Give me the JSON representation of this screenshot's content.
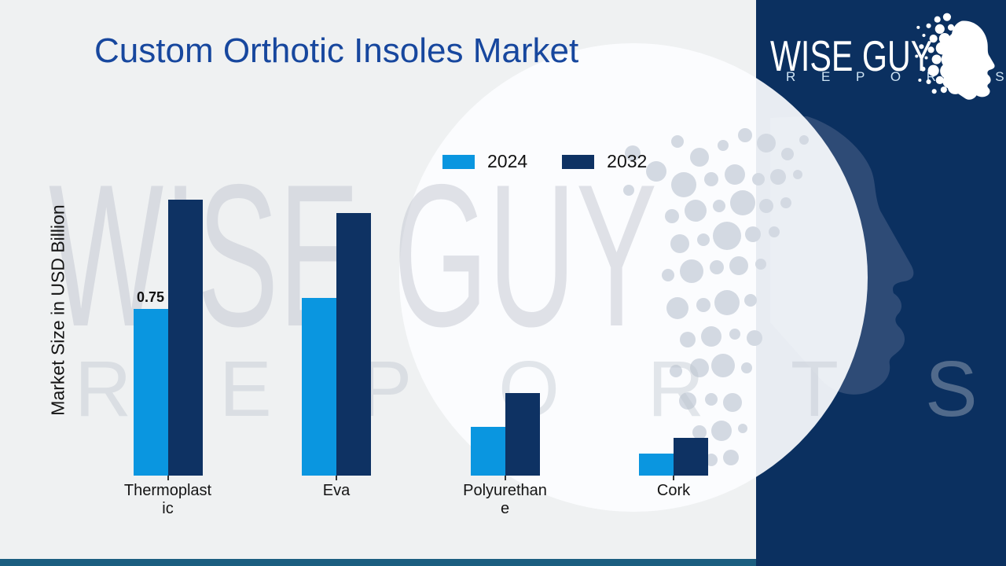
{
  "title": "Custom Orthotic Insoles Market",
  "brand": {
    "name": "WISE GUY",
    "tagline": "R E P O R T S"
  },
  "watermark": {
    "name": "WISE GUY",
    "tagline": "R E P O R T S"
  },
  "chart_data": {
    "type": "bar",
    "title": "Custom Orthotic Insoles Market",
    "ylabel": "Market Size in USD Billion",
    "xlabel": "",
    "categories": [
      "Thermoplastic",
      "Eva",
      "Polyurethane",
      "Cork"
    ],
    "category_label_lines": [
      [
        "Thermoplast",
        "ic"
      ],
      [
        "Eva"
      ],
      [
        "Polyurethan",
        "e"
      ],
      [
        "Cork"
      ]
    ],
    "series": [
      {
        "name": "2024",
        "color": "#0a96e0",
        "values": [
          0.75,
          0.8,
          0.22,
          0.1
        ]
      },
      {
        "name": "2032",
        "color": "#0e3263",
        "values": [
          1.24,
          1.18,
          0.37,
          0.17
        ]
      }
    ],
    "annotations": [
      {
        "series": "2024",
        "category": "Thermoplastic",
        "text": "0.75"
      }
    ],
    "ylim": [
      0,
      1.4
    ],
    "grid": false,
    "legend_position": "top-center"
  },
  "colors": {
    "background": "#eff1f2",
    "brand_panel": "#0b3060",
    "series_2024": "#0a96e0",
    "series_2032": "#0e3263",
    "title": "#17479e",
    "bottom_strip": "#1b5e80"
  }
}
